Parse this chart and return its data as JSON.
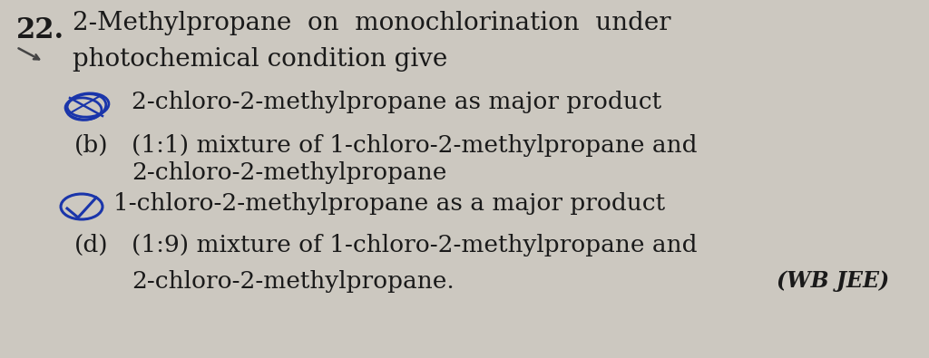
{
  "bg_color": "#ccc8c0",
  "text_color": "#1a1a1a",
  "mark_color": "#1a35aa",
  "font_size_q": 20,
  "font_size_opt": 19,
  "font_size_src": 17,
  "q_num": "22.",
  "q_line1": "2-Methylpropane  on  monochlorination  under",
  "q_line2": "photochemical condition give",
  "opt_a_text": "2-chloro-2-methylpropane as major product",
  "opt_b_label": "(b)",
  "opt_b_line1": "(1:1) mixture of 1-chloro-2-methylpropane and",
  "opt_b_line2": "2-chloro-2-methylpropane",
  "opt_c_text": "1-chloro-2-methylpropane as a major product",
  "opt_d_label": "(d)",
  "opt_d_line1": "(1:9) mixture of 1-chloro-2-methylpropane and",
  "opt_d_line2": "2-chloro-2-methylpropane.",
  "source": "(WB JEE)"
}
